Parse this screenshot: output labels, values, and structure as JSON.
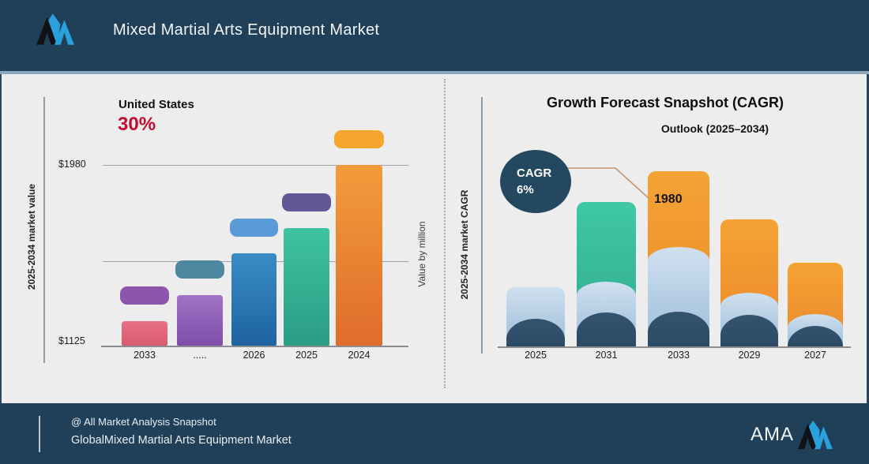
{
  "header": {
    "title": "Mixed Martial Arts Equipment Market",
    "logo": "ama-mountain-logo"
  },
  "footer": {
    "line1": "@ All Market Analysis Snapshot",
    "line2": "GlobalMixed Martial Arts Equipment Market",
    "brand": "AMA",
    "logo": "ama-mountain-logo"
  },
  "divider": {
    "middle_axis_note": "Value by million"
  },
  "colors": {
    "header_bg": "#20405a",
    "content_bg": "#ededee",
    "highlight_red": "#c60c2e",
    "badge_navy": "#24485f",
    "connector_line": "#c9946a",
    "logo_blue": "#2aa0dd",
    "logo_black": "#101215"
  },
  "chart_data": [
    {
      "type": "bar",
      "title": "United States",
      "highlight_value": "30%",
      "ylabel": "2025-2034 market value",
      "y_ticks": [
        "$1980",
        "$1125"
      ],
      "ylim": [
        1125,
        1980
      ],
      "gridline_values": [
        1980,
        1525,
        1125
      ],
      "grid": true,
      "legend": "none",
      "categories": [
        "2033",
        ".....",
        "2026",
        "2025",
        "2024"
      ],
      "values": [
        1240,
        1365,
        1560,
        1680,
        1980
      ],
      "bars": [
        {
          "label": "2033",
          "value": 1240,
          "color_top": "#e87186",
          "color_bottom": "#d85a6e",
          "cap_color": "#8e55ad"
        },
        {
          "label": ".....",
          "value": 1365,
          "color_top": "#a173c7",
          "color_bottom": "#7e4ea8",
          "cap_color": "#4e87a0"
        },
        {
          "label": "2026",
          "value": 1560,
          "color_top": "#3a8cc6",
          "color_bottom": "#1e639f",
          "cap_color": "#5b9ad8"
        },
        {
          "label": "2025",
          "value": 1680,
          "color_top": "#3ec3a1",
          "color_bottom": "#2a9c84",
          "cap_color": "#615897"
        },
        {
          "label": "2024",
          "value": 1980,
          "color_top": "#f29c3c",
          "color_bottom": "#e06c2b",
          "cap_color": "#f4a62f"
        }
      ]
    },
    {
      "type": "bar",
      "stacked": true,
      "title": "Growth Forecast Snapshot (CAGR)",
      "subtitle": "Outlook (2025–2034)",
      "ylabel": "2025-2034 market CAGR",
      "badge": {
        "line1": "CAGR",
        "line2": "6%"
      },
      "annotation": {
        "text": "1980",
        "on_bar": "2033"
      },
      "legend": "none",
      "grid": false,
      "categories": [
        "2025",
        "2031",
        "2033",
        "2029",
        "2027"
      ],
      "totals": [
        669,
        1632,
        1980,
        1436,
        945
      ],
      "palette": {
        "navy": [
          "#33536f",
          "#2a4a66"
        ],
        "lightblue": [
          "#cfe0ef",
          "#9dbcd9"
        ],
        "teal": [
          "#40c8a6",
          "#30a98b"
        ],
        "orange": [
          "#f5a335",
          "#eb882a"
        ]
      },
      "bars": [
        {
          "label": "2025",
          "segments": [
            {
              "name": "navy",
              "value": 312
            },
            {
              "name": "lightblue",
              "value": 357
            }
          ]
        },
        {
          "label": "2031",
          "segments": [
            {
              "name": "navy",
              "value": 383
            },
            {
              "name": "lightblue",
              "value": 348
            },
            {
              "name": "teal",
              "value": 901
            }
          ]
        },
        {
          "label": "2033",
          "segments": [
            {
              "name": "navy",
              "value": 392
            },
            {
              "name": "lightblue",
              "value": 731
            },
            {
              "name": "orange",
              "value": 857
            }
          ]
        },
        {
          "label": "2029",
          "segments": [
            {
              "name": "navy",
              "value": 357
            },
            {
              "name": "lightblue",
              "value": 250
            },
            {
              "name": "orange",
              "value": 829
            }
          ]
        },
        {
          "label": "2027",
          "segments": [
            {
              "name": "navy",
              "value": 232
            },
            {
              "name": "lightblue",
              "value": 134
            },
            {
              "name": "orange",
              "value": 579
            }
          ]
        }
      ]
    }
  ]
}
